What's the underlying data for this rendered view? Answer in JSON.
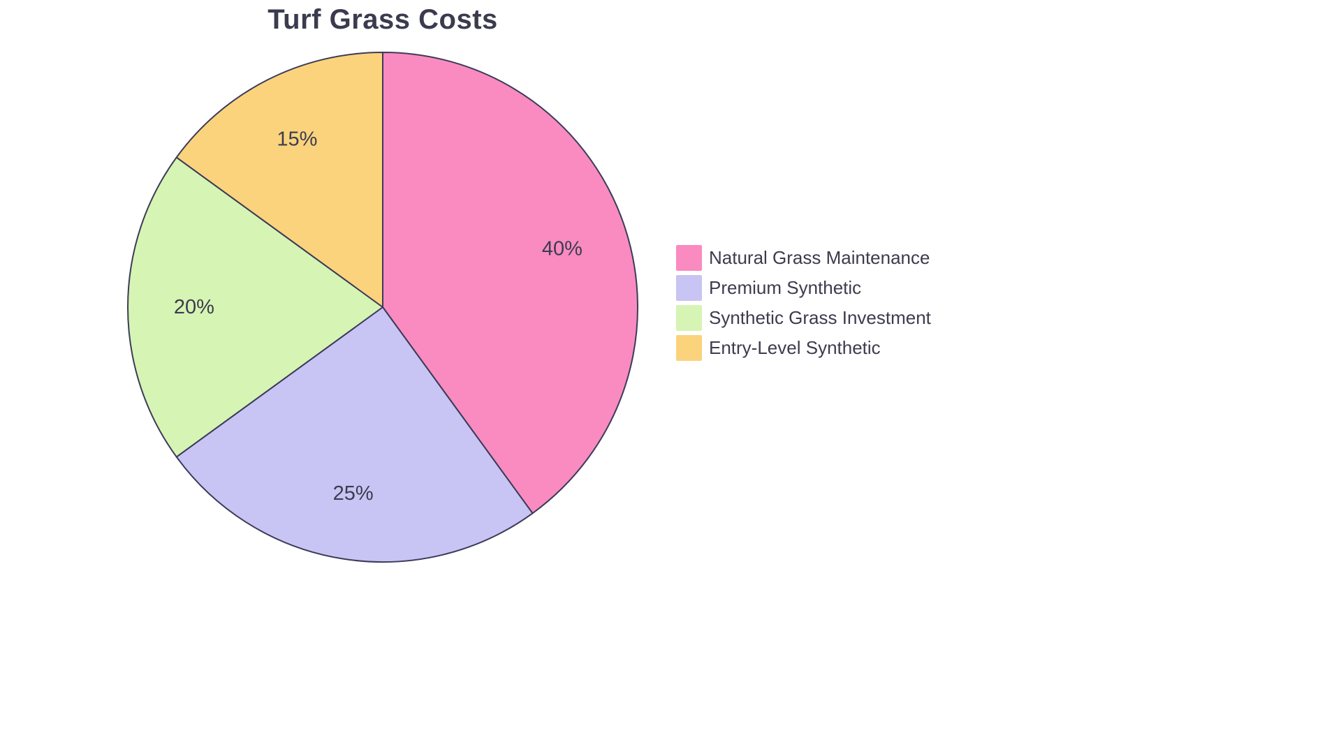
{
  "page": {
    "background_color": "#FFFFFF"
  },
  "chart_data": {
    "type": "pie",
    "title": "Turf Grass Costs",
    "labels": [
      "Natural Grass Maintenance",
      "Premium Synthetic",
      "Synthetic Grass Investment",
      "Entry-Level Synthetic"
    ],
    "values": [
      40,
      25,
      20,
      15
    ],
    "value_labels": [
      "40%",
      "25%",
      "20%",
      "15%"
    ],
    "colors": [
      "#F98BC1",
      "#C8C4F4",
      "#D6F4B4",
      "#FBD37D"
    ],
    "stroke_color": "#3B3B58",
    "text_color": "#3C3C4E",
    "start_angle_deg": 0,
    "direction": "clockwise",
    "legend_position": "right",
    "data_labels_inside": true
  }
}
